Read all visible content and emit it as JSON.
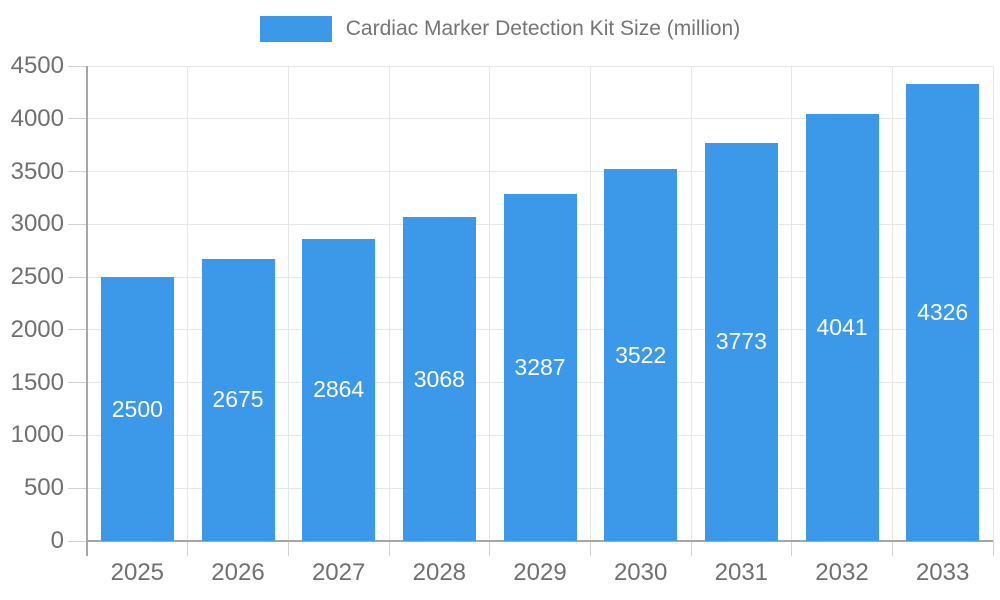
{
  "chart_data": {
    "type": "bar",
    "title": "Cardiac Marker Detection Kit Size (million)",
    "series_name": "Cardiac Marker Detection Kit Size (million)",
    "categories": [
      "2025",
      "2026",
      "2027",
      "2028",
      "2029",
      "2030",
      "2031",
      "2032",
      "2033"
    ],
    "values": [
      2500,
      2675,
      2864,
      3068,
      3287,
      3522,
      3773,
      4041,
      4326
    ],
    "value_labels": [
      "2500",
      "2675",
      "2864",
      "3068",
      "3287",
      "3522",
      "3773",
      "4041",
      "4326"
    ],
    "xlabel": "",
    "ylabel": "",
    "ylim": [
      0,
      4500
    ],
    "ytick_step": 500,
    "yticks": [
      0,
      500,
      1000,
      1500,
      2000,
      2500,
      3000,
      3500,
      4000,
      4500
    ],
    "ytick_labels": [
      "0",
      "500",
      "1000",
      "1500",
      "2000",
      "2500",
      "3000",
      "3500",
      "4000",
      "4500"
    ],
    "grid": "horizontal and vertical gridlines on",
    "legend_position": "top-center",
    "value_label_position": "centered inside bar",
    "colors": {
      "bar": "#3C99EA",
      "value_label": "#FFFFFF",
      "axis_text": "#707070",
      "legend_text": "#757575",
      "gridline": "#E7E7E7",
      "tick": "#D2D2D2",
      "axis_line": "#A6A6A6",
      "background": "#FFFFFF"
    }
  }
}
